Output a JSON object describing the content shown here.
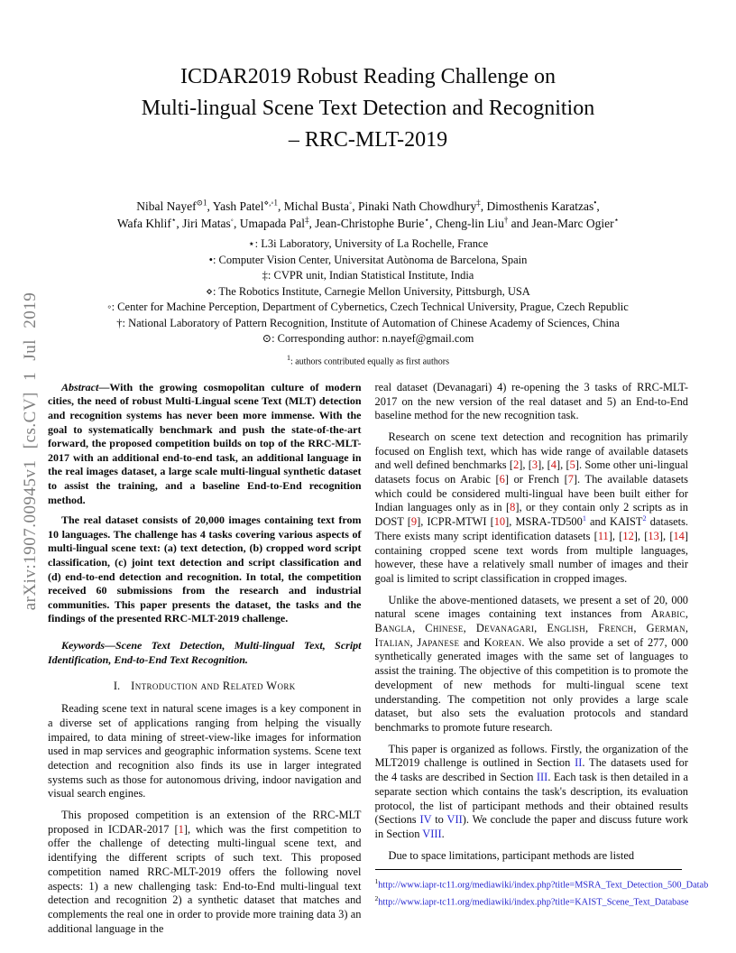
{
  "arxiv_label": "arXiv:1907.00945v1 [cs.CV] 1 Jul 2019",
  "title": {
    "lines": [
      "ICDAR2019 Robust Reading Challenge on",
      "Multi-lingual Scene Text Detection and Recognition",
      "– RRC-MLT-2019"
    ]
  },
  "authors": {
    "line1": [
      {
        "t": "Nibal Nayef"
      },
      {
        "t": "⊙1",
        "c": "sup"
      },
      {
        "t": ", Yash Patel"
      },
      {
        "t": "⋄,◦1",
        "c": "sup"
      },
      {
        "t": ", Michal Busta"
      },
      {
        "t": "◦",
        "c": "sup"
      },
      {
        "t": ", Pinaki Nath Chowdhury"
      },
      {
        "t": "‡",
        "c": "sup"
      },
      {
        "t": ", Dimosthenis Karatzas"
      },
      {
        "t": "•",
        "c": "sup"
      },
      {
        "t": ","
      }
    ],
    "line2": [
      {
        "t": "Wafa Khlif"
      },
      {
        "t": "⋆",
        "c": "sup"
      },
      {
        "t": ", Jiri Matas"
      },
      {
        "t": "◦",
        "c": "sup"
      },
      {
        "t": ", Umapada Pal"
      },
      {
        "t": "‡",
        "c": "sup"
      },
      {
        "t": ", Jean-Christophe Burie"
      },
      {
        "t": "⋆",
        "c": "sup"
      },
      {
        "t": ", Cheng-lin Liu"
      },
      {
        "t": "†",
        "c": "sup"
      },
      {
        "t": " and Jean-Marc Ogier"
      },
      {
        "t": "⋆",
        "c": "sup"
      }
    ]
  },
  "affiliations": [
    "⋆: L3i Laboratory, University of La Rochelle, France",
    "•: Computer Vision Center, Universitat Autònoma de Barcelona, Spain",
    "‡: CVPR unit, Indian Statistical Institute, India",
    "⋄: The Robotics Institute, Carnegie Mellon University, Pittsburgh, USA",
    "◦: Center for Machine Perception, Department of Cybernetics, Czech Technical University, Prague, Czech Republic",
    "†: National Laboratory of Pattern Recognition, Institute of Automation of Chinese Academy of Sciences, China",
    "⊙: Corresponding author: n.nayef@gmail.com"
  ],
  "contrib_note": {
    "sup": "1",
    "text": ": authors contributed equally as first authors"
  },
  "abstract": {
    "p1": [
      {
        "t": "Abstract",
        "c": "it"
      },
      {
        "t": "—With the growing cosmopolitan culture of modern cities, the need of robust Multi-Lingual scene Text (MLT) detection and recognition systems has never been more immense. With the goal to systematically benchmark and push the state-of-the-art forward, the proposed competition builds on top of the RRC-MLT-2017 with an additional end-to-end task, an additional language in the real images dataset, a large scale multi-lingual synthetic dataset to assist the training, and a baseline End-to-End recognition method."
      }
    ],
    "p2": "The real dataset consists of 20,000 images containing text from 10 languages. The challenge has 4 tasks covering various aspects of multi-lingual scene text: (a) text detection, (b) cropped word script classification, (c) joint text detection and script classification and (d) end-to-end detection and recognition. In total, the competition received 60 submissions from the research and industrial communities. This paper presents the dataset, the tasks and the findings of the presented RRC-MLT-2019 challenge.",
    "keywords": "Keywords—Scene Text Detection, Multi-lingual Text, Script Identification, End-to-End Text Recognition."
  },
  "section1": {
    "number": "I.",
    "title": "Introduction and Related Work"
  },
  "intro": {
    "p1": "Reading scene text in natural scene images is a key component in a diverse set of applications ranging from helping the visually impaired, to data mining of street-view-like images for information used in map services and geographic information systems. Scene text detection and recognition also finds its use in larger integrated systems such as those for autonomous driving, indoor navigation and visual search engines.",
    "p2": [
      {
        "t": "This proposed competition is an extension of the RRC-MLT proposed in ICDAR-2017 ["
      },
      {
        "t": "1",
        "c": "cite"
      },
      {
        "t": "], which was the first competition to offer the challenge of detecting multi-lingual scene text, and identifying the different scripts of such text. This proposed competition named RRC-MLT-2019 offers the following novel aspects: 1) a new challenging task: End-to-End multi-lingual text detection and recognition 2) a synthetic dataset that matches and complements the real one in order to provide more training data 3) an additional language in the"
      }
    ]
  },
  "right": {
    "p1": "real dataset (Devanagari) 4) re-opening the 3 tasks of RRC-MLT-2017 on the new version of the real dataset and 5) an End-to-End baseline method for the new recognition task.",
    "p2": [
      {
        "t": "Research on scene text detection and recognition has primarily focused on English text, which has wide range of available datasets and well defined benchmarks ["
      },
      {
        "t": "2",
        "c": "cite"
      },
      {
        "t": "], ["
      },
      {
        "t": "3",
        "c": "cite"
      },
      {
        "t": "], ["
      },
      {
        "t": "4",
        "c": "cite"
      },
      {
        "t": "], ["
      },
      {
        "t": "5",
        "c": "cite"
      },
      {
        "t": "]. Some other uni-lingual datasets focus on Arabic ["
      },
      {
        "t": "6",
        "c": "cite"
      },
      {
        "t": "] or French ["
      },
      {
        "t": "7",
        "c": "cite"
      },
      {
        "t": "]. The available datasets which could be considered multi-lingual have been built either for Indian languages only as in ["
      },
      {
        "t": "8",
        "c": "cite"
      },
      {
        "t": "], or they contain only 2 scripts as in DOST ["
      },
      {
        "t": "9",
        "c": "cite"
      },
      {
        "t": "], ICPR-MTWI ["
      },
      {
        "t": "10",
        "c": "cite"
      },
      {
        "t": "], MSRA-TD500"
      },
      {
        "t": "1",
        "c": "fnref"
      },
      {
        "t": " and KAIST"
      },
      {
        "t": "2",
        "c": "fnref"
      },
      {
        "t": " datasets. There exists many script identification datasets ["
      },
      {
        "t": "11",
        "c": "cite"
      },
      {
        "t": "], ["
      },
      {
        "t": "12",
        "c": "cite"
      },
      {
        "t": "], ["
      },
      {
        "t": "13",
        "c": "cite"
      },
      {
        "t": "], ["
      },
      {
        "t": "14",
        "c": "cite"
      },
      {
        "t": "] containing cropped scene text words from multiple languages, however, these have a relatively small number of images and their goal is limited to script classification in cropped images."
      }
    ],
    "p3": [
      {
        "t": "Unlike the above-mentioned datasets, we present a set of 20, 000 natural scene images containing text instances from "
      },
      {
        "t": "Arabic",
        "c": "sc"
      },
      {
        "t": ", "
      },
      {
        "t": "Bangla",
        "c": "sc"
      },
      {
        "t": ", "
      },
      {
        "t": "Chinese",
        "c": "sc"
      },
      {
        "t": ", "
      },
      {
        "t": "Devanagari",
        "c": "sc"
      },
      {
        "t": ", "
      },
      {
        "t": "English",
        "c": "sc"
      },
      {
        "t": ", "
      },
      {
        "t": "French",
        "c": "sc"
      },
      {
        "t": ", "
      },
      {
        "t": "German",
        "c": "sc"
      },
      {
        "t": ", "
      },
      {
        "t": "Italian",
        "c": "sc"
      },
      {
        "t": ", "
      },
      {
        "t": "Japanese",
        "c": "sc"
      },
      {
        "t": " and "
      },
      {
        "t": "Korean",
        "c": "sc"
      },
      {
        "t": ". We also provide a set of 277, 000 synthetically generated images with the same set of languages to assist the training. The objective of this competition is to promote the development of new methods for multi-lingual scene text understanding. The competition not only provides a large scale dataset, but also sets the evaluation protocols and standard benchmarks to promote future research."
      }
    ],
    "p4": [
      {
        "t": "This paper is organized as follows. Firstly, the organization of the MLT2019 challenge is outlined in Section "
      },
      {
        "t": "II",
        "c": "ref"
      },
      {
        "t": ". The datasets used for the 4 tasks are described in Section "
      },
      {
        "t": "III",
        "c": "ref"
      },
      {
        "t": ". Each task is then detailed in a separate section which contains the task's description, its evaluation protocol, the list of participant methods and their obtained results (Sections "
      },
      {
        "t": "IV",
        "c": "ref"
      },
      {
        "t": " to "
      },
      {
        "t": "VII",
        "c": "ref"
      },
      {
        "t": "). We conclude the paper and discuss future work in Section "
      },
      {
        "t": "VIII",
        "c": "ref"
      },
      {
        "t": "."
      }
    ],
    "p5": "Due to space limitations, participant methods are listed"
  },
  "footnotes": [
    {
      "marker": "1",
      "url": "http://www.iapr-tc11.org/mediawiki/index.php?title=MSRA_Text_Detection_500_Datab"
    },
    {
      "marker": "2",
      "url": "http://www.iapr-tc11.org/mediawiki/index.php?title=KAIST_Scene_Text_Database"
    }
  ]
}
